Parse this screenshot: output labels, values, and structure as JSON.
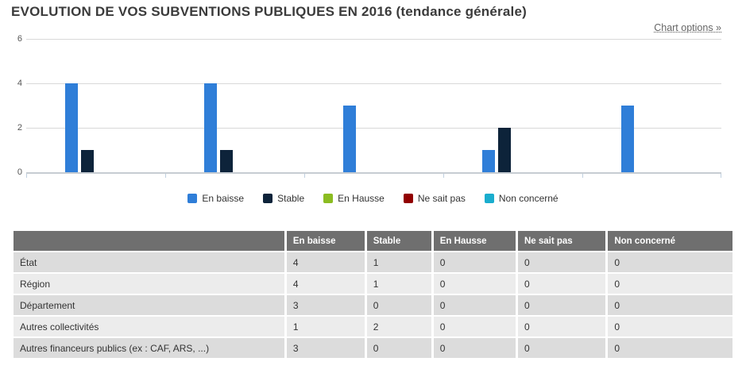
{
  "header": {
    "title": "EVOLUTION DE VOS SUBVENTIONS PUBLIQUES EN 2016 (tendance générale)",
    "chart_options_label": "Chart options »"
  },
  "colors": {
    "en_baisse": "#2f7ed8",
    "stable": "#0d233a",
    "en_hausse": "#8bbc21",
    "ne_sait_pas": "#910000",
    "non_concerne": "#1aadce",
    "table_header_bg": "#6f6f6f",
    "row_odd_bg": "#dcdcdc",
    "row_even_bg": "#ececec"
  },
  "chart_data": {
    "type": "bar",
    "title": "EVOLUTION DE VOS SUBVENTIONS PUBLIQUES EN 2016 (tendance générale)",
    "categories": [
      "État",
      "Région",
      "Département",
      "Autres collectivités",
      "Autres financeurs publics (ex : CAF, ARS, ...)"
    ],
    "series": [
      {
        "name": "En baisse",
        "color": "#2f7ed8",
        "values": [
          4,
          4,
          3,
          1,
          3
        ]
      },
      {
        "name": "Stable",
        "color": "#0d233a",
        "values": [
          1,
          1,
          0,
          2,
          0
        ]
      },
      {
        "name": "En Hausse",
        "color": "#8bbc21",
        "values": [
          0,
          0,
          0,
          0,
          0
        ]
      },
      {
        "name": "Ne sait pas",
        "color": "#910000",
        "values": [
          0,
          0,
          0,
          0,
          0
        ]
      },
      {
        "name": "Non concerné",
        "color": "#1aadce",
        "values": [
          0,
          0,
          0,
          0,
          0
        ]
      }
    ],
    "xlabel": "",
    "ylabel": "",
    "ylim": [
      0,
      6
    ],
    "yticks": [
      0,
      2,
      4,
      6
    ],
    "grid": true,
    "legend_position": "bottom",
    "x_axis_category_labels_visible": false
  },
  "table": {
    "columns": [
      "",
      "En baisse",
      "Stable",
      "En Hausse",
      "Ne sait pas",
      "Non concerné"
    ],
    "rows": [
      {
        "label": "État",
        "values": [
          4,
          1,
          0,
          0,
          0
        ]
      },
      {
        "label": "Région",
        "values": [
          4,
          1,
          0,
          0,
          0
        ]
      },
      {
        "label": "Département",
        "values": [
          3,
          0,
          0,
          0,
          0
        ]
      },
      {
        "label": "Autres collectivités",
        "values": [
          1,
          2,
          0,
          0,
          0
        ]
      },
      {
        "label": "Autres financeurs publics (ex : CAF, ARS, ...)",
        "values": [
          3,
          0,
          0,
          0,
          0
        ]
      }
    ]
  }
}
